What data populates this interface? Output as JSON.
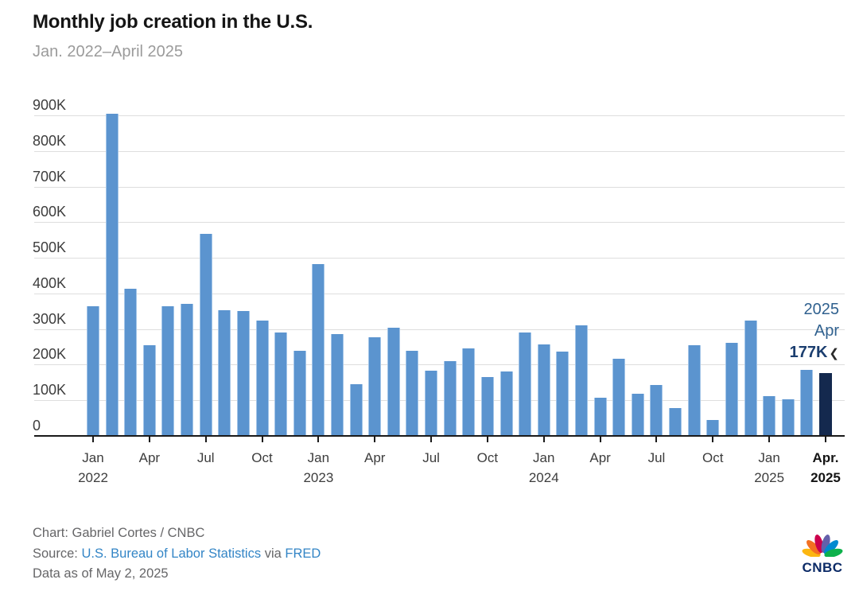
{
  "header": {
    "title": "Monthly job creation in the U.S.",
    "subtitle": "Jan. 2022–April 2025"
  },
  "chart_data": {
    "type": "bar",
    "title": "Monthly job creation in the U.S.",
    "subtitle": "Jan. 2022–April 2025",
    "value_unit": "K (thousands of jobs)",
    "ylim": [
      0,
      900
    ],
    "grid": "horizontal",
    "legend": "none",
    "categories": [
      "Jan 2022",
      "Feb 2022",
      "Mar 2022",
      "Apr 2022",
      "May 2022",
      "Jun 2022",
      "Jul 2022",
      "Aug 2022",
      "Sep 2022",
      "Oct 2022",
      "Nov 2022",
      "Dec 2022",
      "Jan 2023",
      "Feb 2023",
      "Mar 2023",
      "Apr 2023",
      "May 2023",
      "Jun 2023",
      "Jul 2023",
      "Aug 2023",
      "Sep 2023",
      "Oct 2023",
      "Nov 2023",
      "Dec 2023",
      "Jan 2024",
      "Feb 2024",
      "Mar 2024",
      "Apr 2024",
      "May 2024",
      "Jun 2024",
      "Jul 2024",
      "Aug 2024",
      "Sep 2024",
      "Oct 2024",
      "Nov 2024",
      "Dec 2024",
      "Jan 2025",
      "Feb 2025",
      "Mar 2025",
      "Apr 2025"
    ],
    "values": [
      364,
      904,
      414,
      254,
      364,
      370,
      568,
      352,
      350,
      324,
      290,
      239,
      482,
      287,
      146,
      278,
      303,
      240,
      184,
      210,
      246,
      165,
      182,
      290,
      256,
      236,
      310,
      108,
      216,
      118,
      144,
      78,
      255,
      44,
      261,
      323,
      111,
      102,
      185,
      177
    ],
    "highlight_index": 39,
    "yticks": [
      {
        "label": "900K",
        "value": 900
      },
      {
        "label": "800K",
        "value": 800
      },
      {
        "label": "700K",
        "value": 700
      },
      {
        "label": "600K",
        "value": 600
      },
      {
        "label": "500K",
        "value": 500
      },
      {
        "label": "400K",
        "value": 400
      },
      {
        "label": "300K",
        "value": 300
      },
      {
        "label": "200K",
        "value": 200
      },
      {
        "label": "100K",
        "value": 100
      },
      {
        "label": "0",
        "value": 0
      }
    ],
    "x_ticks": [
      {
        "i": 0,
        "month": "Jan",
        "year": "2022"
      },
      {
        "i": 3,
        "month": "Apr"
      },
      {
        "i": 6,
        "month": "Jul"
      },
      {
        "i": 9,
        "month": "Oct"
      },
      {
        "i": 12,
        "month": "Jan",
        "year": "2023"
      },
      {
        "i": 15,
        "month": "Apr"
      },
      {
        "i": 18,
        "month": "Jul"
      },
      {
        "i": 21,
        "month": "Oct"
      },
      {
        "i": 24,
        "month": "Jan",
        "year": "2024"
      },
      {
        "i": 27,
        "month": "Apr"
      },
      {
        "i": 30,
        "month": "Jul"
      },
      {
        "i": 33,
        "month": "Oct"
      },
      {
        "i": 36,
        "month": "Jan",
        "year": "2025"
      },
      {
        "i": 39,
        "month": "Apr.",
        "year": "2025",
        "bold": true
      }
    ]
  },
  "annotation": {
    "year": "2025",
    "month": "Apr",
    "value": "177K",
    "arrow": "❮"
  },
  "colors": {
    "bar": "#5b94cf",
    "bar_highlight": "#14294e",
    "gridline": "#dedede",
    "baseline": "#1a1a1a",
    "axis_text": "#3d3d3d",
    "annotation_blue": "#30618f",
    "annotation_navy": "#1b3e6f"
  },
  "footer": {
    "credit": "Chart: Gabriel Cortes / CNBC",
    "source_label": "Source:",
    "source_link": "U.S. Bureau of Labor Statistics",
    "via": "via",
    "fred_link": "FRED",
    "asof": "Data as of May 2, 2025"
  },
  "logo": {
    "label": "CNBC",
    "feather_colors": [
      "#FCB711",
      "#F37021",
      "#CC004C",
      "#6460AA",
      "#0089D0",
      "#0DB14B"
    ]
  }
}
